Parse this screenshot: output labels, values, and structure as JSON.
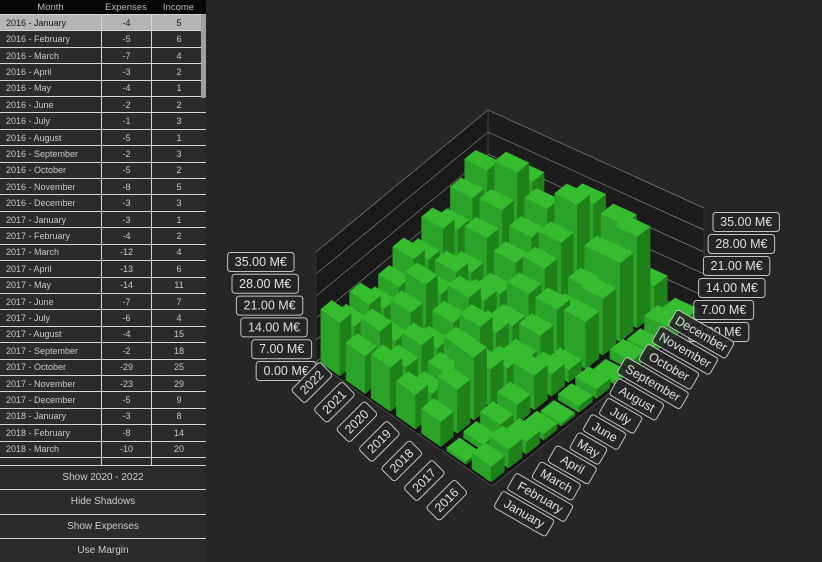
{
  "panel": {
    "table": {
      "headers": [
        "Month",
        "Expenses",
        "Income"
      ],
      "rows": [
        {
          "month": "2016 - January",
          "expenses": "-4",
          "income": "5",
          "selected": true
        },
        {
          "month": "2016 - February",
          "expenses": "-5",
          "income": "6",
          "selected": false
        },
        {
          "month": "2016 - March",
          "expenses": "-7",
          "income": "4",
          "selected": false
        },
        {
          "month": "2016 - April",
          "expenses": "-3",
          "income": "2",
          "selected": false
        },
        {
          "month": "2016 - May",
          "expenses": "-4",
          "income": "1",
          "selected": false
        },
        {
          "month": "2016 - June",
          "expenses": "-2",
          "income": "2",
          "selected": false
        },
        {
          "month": "2016 - July",
          "expenses": "-1",
          "income": "3",
          "selected": false
        },
        {
          "month": "2016 - August",
          "expenses": "-5",
          "income": "1",
          "selected": false
        },
        {
          "month": "2016 - September",
          "expenses": "-2",
          "income": "3",
          "selected": false
        },
        {
          "month": "2016 - October",
          "expenses": "-5",
          "income": "2",
          "selected": false
        },
        {
          "month": "2016 - November",
          "expenses": "-8",
          "income": "5",
          "selected": false
        },
        {
          "month": "2016 - December",
          "expenses": "-3",
          "income": "3",
          "selected": false
        },
        {
          "month": "2017 - January",
          "expenses": "-3",
          "income": "1",
          "selected": false
        },
        {
          "month": "2017 - February",
          "expenses": "-4",
          "income": "2",
          "selected": false
        },
        {
          "month": "2017 - March",
          "expenses": "-12",
          "income": "4",
          "selected": false
        },
        {
          "month": "2017 - April",
          "expenses": "-13",
          "income": "6",
          "selected": false
        },
        {
          "month": "2017 - May",
          "expenses": "-14",
          "income": "11",
          "selected": false
        },
        {
          "month": "2017 - June",
          "expenses": "-7",
          "income": "7",
          "selected": false
        },
        {
          "month": "2017 - July",
          "expenses": "-6",
          "income": "4",
          "selected": false
        },
        {
          "month": "2017 - August",
          "expenses": "-4",
          "income": "15",
          "selected": false
        },
        {
          "month": "2017 - September",
          "expenses": "-2",
          "income": "18",
          "selected": false
        },
        {
          "month": "2017 - October",
          "expenses": "-29",
          "income": "25",
          "selected": false
        },
        {
          "month": "2017 - November",
          "expenses": "-23",
          "income": "29",
          "selected": false
        },
        {
          "month": "2017 - December",
          "expenses": "-5",
          "income": "9",
          "selected": false
        },
        {
          "month": "2018 - January",
          "expenses": "-3",
          "income": "8",
          "selected": false
        },
        {
          "month": "2018 - February",
          "expenses": "-8",
          "income": "14",
          "selected": false
        },
        {
          "month": "2018 - March",
          "expenses": "-10",
          "income": "20",
          "selected": false
        }
      ]
    },
    "buttons": [
      "Show 2020 - 2022",
      "Hide Shadows",
      "Show Expenses",
      "Use Margin"
    ]
  },
  "chart_data": {
    "type": "bar",
    "projection": "3d",
    "title": "",
    "unit": "M€",
    "visible_series": "Income",
    "value_axis": {
      "min": 0,
      "max": 35,
      "step": 7,
      "labels": [
        "0.00 M€",
        "7.00 M€",
        "14.00 M€",
        "21.00 M€",
        "28.00 M€",
        "35.00 M€"
      ]
    },
    "row_axis": {
      "name": "years",
      "categories": [
        "2016",
        "2017",
        "2018",
        "2019",
        "2020",
        "2021",
        "2022"
      ]
    },
    "column_axis": {
      "name": "months",
      "categories": [
        "January",
        "February",
        "March",
        "April",
        "May",
        "June",
        "July",
        "August",
        "September",
        "October",
        "November",
        "December"
      ]
    },
    "series": [
      {
        "name": "2016",
        "values": [
          5,
          6,
          4,
          2,
          1,
          2,
          3,
          1,
          3,
          2,
          5,
          3
        ]
      },
      {
        "name": "2017",
        "values": [
          1,
          2,
          4,
          6,
          11,
          7,
          4,
          15,
          18,
          25,
          29,
          9
        ]
      },
      {
        "name": "2018",
        "values": [
          8,
          14,
          20,
          12,
          8,
          6,
          10,
          14,
          8,
          12,
          18,
          24
        ]
      },
      {
        "name": "2019",
        "values": [
          11,
          7,
          9,
          13,
          16,
          10,
          8,
          14,
          18,
          22,
          30,
          26
        ]
      },
      {
        "name": "2020",
        "values": [
          14,
          10,
          13,
          8,
          12,
          16,
          11,
          9,
          15,
          19,
          24,
          17
        ]
      },
      {
        "name": "2021",
        "values": [
          12,
          16,
          9,
          14,
          19,
          12,
          15,
          11,
          18,
          23,
          31,
          24
        ]
      },
      {
        "name": "2022",
        "values": [
          17,
          12,
          15,
          10,
          13,
          18,
          14,
          20,
          16,
          22,
          27,
          19
        ]
      }
    ],
    "colors": {
      "bar_top": "#35bd2f",
      "bar_side_left": "#2ba328",
      "bar_side_front": "#1f8119",
      "background": "#262626",
      "wall": "#1a1a1a",
      "floor": "#1b1b1b",
      "grid_line": "#909090",
      "label_border": "#c4c4c4",
      "label_text": "#e0e0e0"
    }
  }
}
